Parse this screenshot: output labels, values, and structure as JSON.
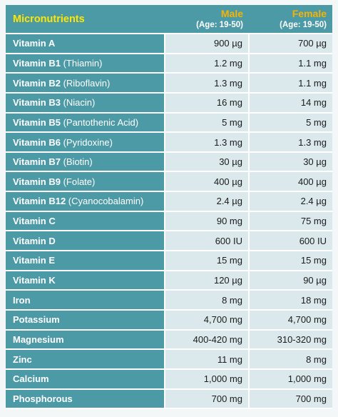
{
  "header": {
    "title": "Micronutrients",
    "male_label": "Male",
    "male_age": "(Age: 19-50)",
    "female_label": "Female",
    "female_age": "(Age: 19-50)"
  },
  "rows": [
    {
      "name": "Vitamin A",
      "sub": "",
      "male": "900 µg",
      "female": "700 µg"
    },
    {
      "name": "Vitamin B1",
      "sub": " (Thiamin)",
      "male": "1.2 mg",
      "female": "1.1 mg"
    },
    {
      "name": "Vitamin B2",
      "sub": " (Riboflavin)",
      "male": "1.3 mg",
      "female": "1.1 mg"
    },
    {
      "name": "Vitamin B3",
      "sub": " (Niacin)",
      "male": "16 mg",
      "female": "14 mg"
    },
    {
      "name": "Vitamin B5",
      "sub": " (Pantothenic Acid)",
      "male": "5 mg",
      "female": "5 mg"
    },
    {
      "name": "Vitamin B6",
      "sub": " (Pyridoxine)",
      "male": "1.3 mg",
      "female": "1.3 mg"
    },
    {
      "name": "Vitamin B7",
      "sub": " (Biotin)",
      "male": "30 µg",
      "female": "30 µg"
    },
    {
      "name": "Vitamin B9",
      "sub": " (Folate)",
      "male": "400 µg",
      "female": "400 µg"
    },
    {
      "name": "Vitamin B12",
      "sub": " (Cyanocobalamin)",
      "male": "2.4 µg",
      "female": "2.4 µg"
    },
    {
      "name": "Vitamin C",
      "sub": "",
      "male": "90 mg",
      "female": "75 mg"
    },
    {
      "name": "Vitamin D",
      "sub": "",
      "male": "600 IU",
      "female": "600 IU"
    },
    {
      "name": "Vitamin E",
      "sub": "",
      "male": "15 mg",
      "female": "15 mg"
    },
    {
      "name": "Vitamin K",
      "sub": "",
      "male": "120 µg",
      "female": "90 µg"
    },
    {
      "name": "Iron",
      "sub": "",
      "male": "8 mg",
      "female": "18 mg"
    },
    {
      "name": "Potassium",
      "sub": "",
      "male": "4,700 mg",
      "female": "4,700 mg"
    },
    {
      "name": "Magnesium",
      "sub": "",
      "male": "400-420 mg",
      "female": "310-320 mg"
    },
    {
      "name": "Zinc",
      "sub": "",
      "male": "11 mg",
      "female": "8 mg"
    },
    {
      "name": "Calcium",
      "sub": "",
      "male": "1,000 mg",
      "female": "1,000 mg"
    },
    {
      "name": "Phosphorous",
      "sub": "",
      "male": "700 mg",
      "female": "700 mg"
    }
  ],
  "colors": {
    "header_bg": "#4d9aa7",
    "title_color": "#ffe600",
    "sex_color": "#f5b400",
    "value_bg": "#dbe9ec"
  }
}
